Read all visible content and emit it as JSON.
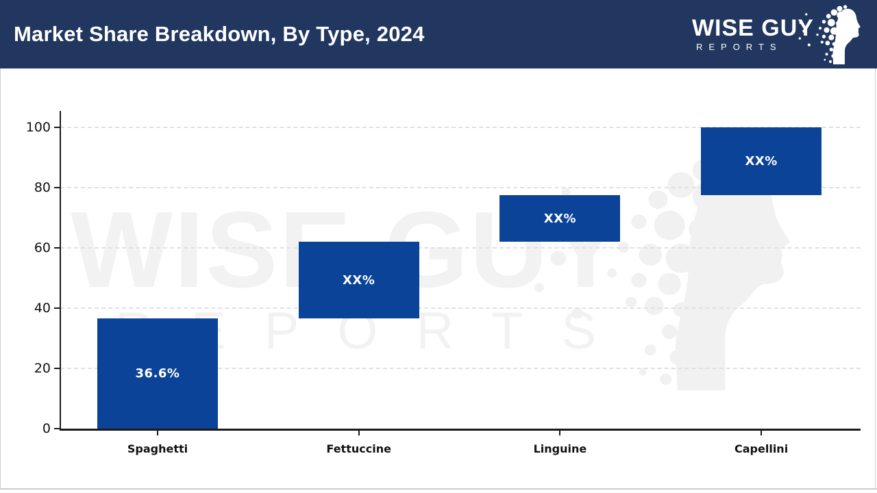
{
  "header": {
    "title": "Market Share Breakdown, By Type, 2024",
    "bg_color": "#21375f",
    "logo": {
      "line1": "WISE GUY",
      "line2": "REPORTS",
      "head_icon": "dotted-head-profile"
    }
  },
  "watermark": {
    "line1": "WISE GUY",
    "line2": "REPORTS",
    "head_icon": "dotted-head-profile"
  },
  "chart_data": {
    "type": "bar",
    "subtype": "waterfall",
    "title": "Market Share Breakdown, By Type, 2024",
    "categories": [
      "Spaghetti",
      "Fettuccine",
      "Linguine",
      "Capellini"
    ],
    "segments": [
      {
        "category": "Spaghetti",
        "start": 0,
        "end": 36.6,
        "label": "36.6%"
      },
      {
        "category": "Fettuccine",
        "start": 36.6,
        "end": 62.0,
        "label": "XX%"
      },
      {
        "category": "Linguine",
        "start": 62.0,
        "end": 77.4,
        "label": "XX%"
      },
      {
        "category": "Capellini",
        "start": 77.4,
        "end": 100,
        "label": "XX%"
      }
    ],
    "xlabel": "",
    "ylabel": "",
    "ylim": [
      0,
      100
    ],
    "yticks": [
      0,
      20,
      40,
      60,
      80,
      100
    ],
    "grid": "horizontal dashed",
    "legend": "none",
    "bar_color": "#0b4398",
    "bar_label_color": "#ffffff",
    "axis_color": "#1a1a1a",
    "gridline_color": "#e0e0e0"
  }
}
